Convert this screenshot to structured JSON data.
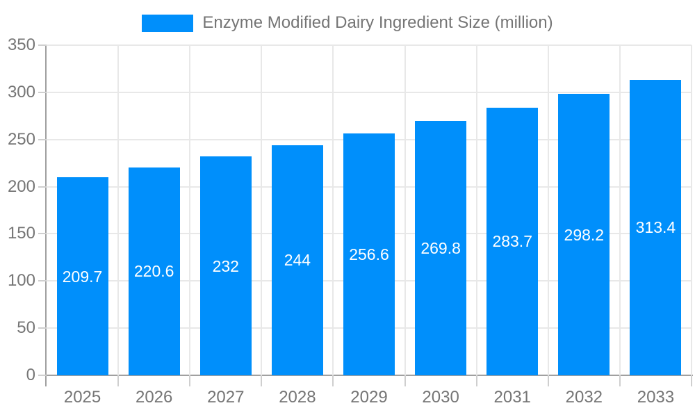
{
  "chart_data": {
    "type": "bar",
    "title": "",
    "legend_position": "top-center",
    "grid": true,
    "categories": [
      "2025",
      "2026",
      "2027",
      "2028",
      "2029",
      "2030",
      "2031",
      "2032",
      "2033"
    ],
    "series": [
      {
        "name": "Enzyme Modified Dairy Ingredient Size (million)",
        "values": [
          209.7,
          220.6,
          232,
          244,
          256.6,
          269.8,
          283.7,
          298.2,
          313.4
        ]
      }
    ],
    "xlabel": "",
    "ylabel": "",
    "ylim": [
      0,
      350
    ],
    "yticks": [
      0,
      50,
      100,
      150,
      200,
      250,
      300,
      350
    ],
    "colors": {
      "bar": "#008FFB",
      "bar_label": "#ffffff",
      "axis_text": "#757575",
      "grid": "#e8e8e8",
      "tick": "#cfcfcf",
      "axis_line": "#a0a0a0",
      "background": "#ffffff"
    }
  }
}
